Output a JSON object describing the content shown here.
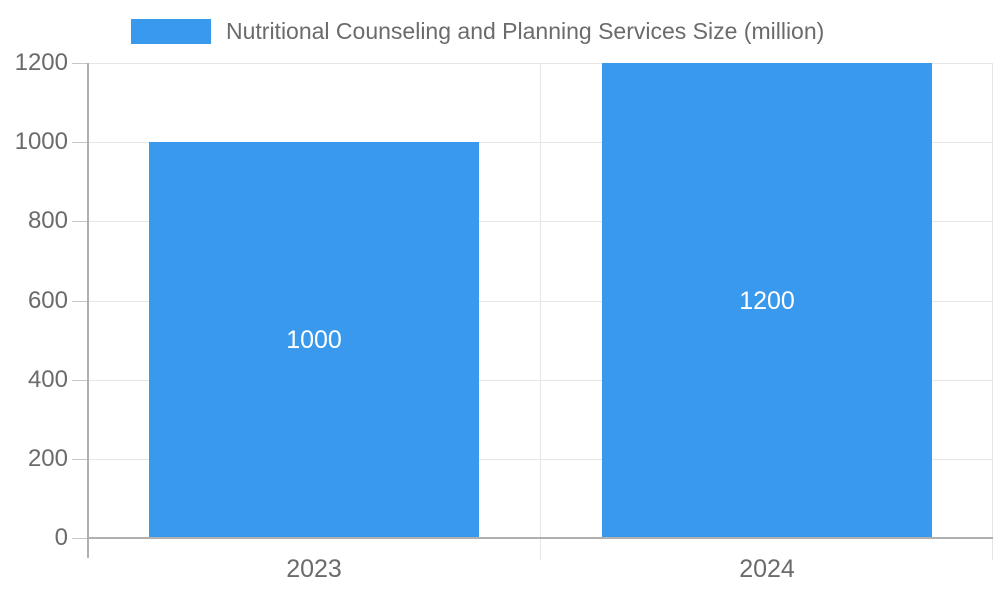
{
  "chart_data": {
    "type": "bar",
    "title": "Nutritional Counseling and Planning Services Size (million)",
    "categories": [
      "2023",
      "2024"
    ],
    "series": [
      {
        "name": "Nutritional Counseling and Planning Services Size (million)",
        "values": [
          1000,
          1200
        ]
      }
    ],
    "bar_value_labels": [
      "1000",
      "1200"
    ],
    "xlabel": "",
    "ylabel": "",
    "ylim": [
      0,
      1200
    ],
    "yticks": [
      0,
      200,
      400,
      600,
      800,
      1000,
      1200
    ],
    "grid": "horizontal-gridlines-with-category-separators",
    "legend_position": "top",
    "colors": {
      "bar": "#3999EC",
      "grid": "#E6E6E6",
      "tick": "#C6C6C6",
      "axis": "#B0B0B0",
      "text": "#6B6B6B",
      "bar_label": "#FFFFFF",
      "background": "#FFFFFF"
    }
  }
}
